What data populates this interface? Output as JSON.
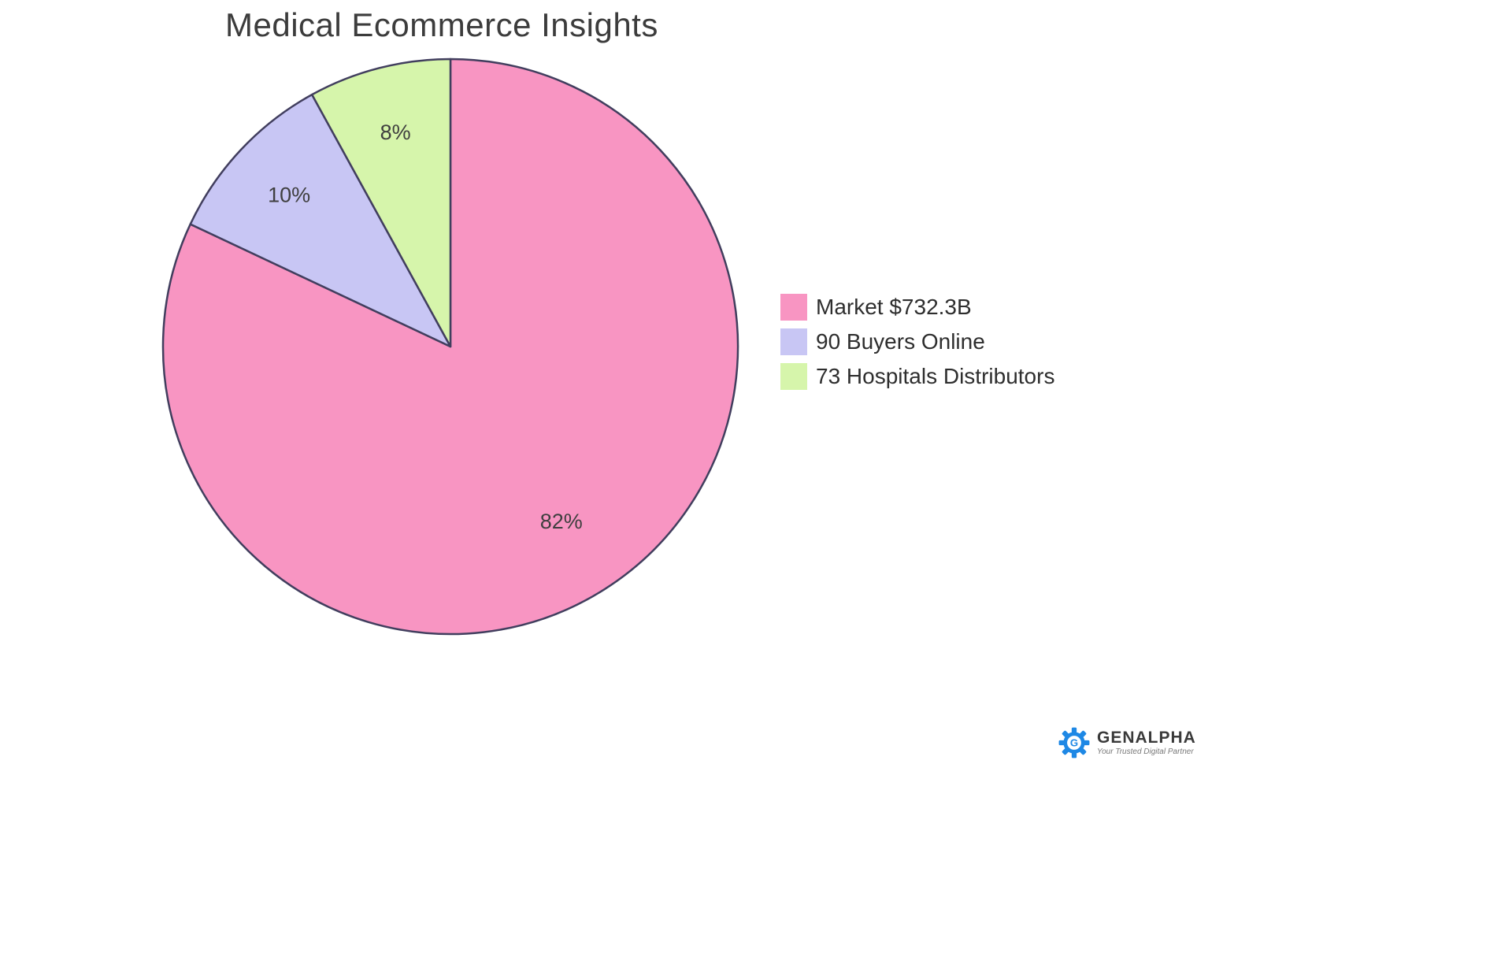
{
  "title": "Medical Ecommerce Insights",
  "chart_data": {
    "type": "pie",
    "title": "Medical Ecommerce Insights",
    "labels": [
      "Market $732.3B",
      "90 Buyers Online",
      "73 Hospitals Distributors"
    ],
    "values": [
      82,
      10,
      8
    ],
    "percent_labels": [
      "82%",
      "10%",
      "8%"
    ],
    "colors": [
      "#F895C2",
      "#C8C6F4",
      "#D6F5AB"
    ],
    "outline_color": "#413E5E",
    "start_angle": "top",
    "direction": "clockwise",
    "legend_position": "right"
  },
  "legend": {
    "items": [
      {
        "label": "Market $732.3B",
        "color": "#F895C2"
      },
      {
        "label": "90 Buyers Online",
        "color": "#C8C6F4"
      },
      {
        "label": "73 Hospitals Distributors",
        "color": "#D6F5AB"
      }
    ]
  },
  "footer_logo": {
    "name": "GENALPHA",
    "tagline": "Your Trusted Digital Partner",
    "initial": "G",
    "accent_color": "#1E88E5"
  }
}
